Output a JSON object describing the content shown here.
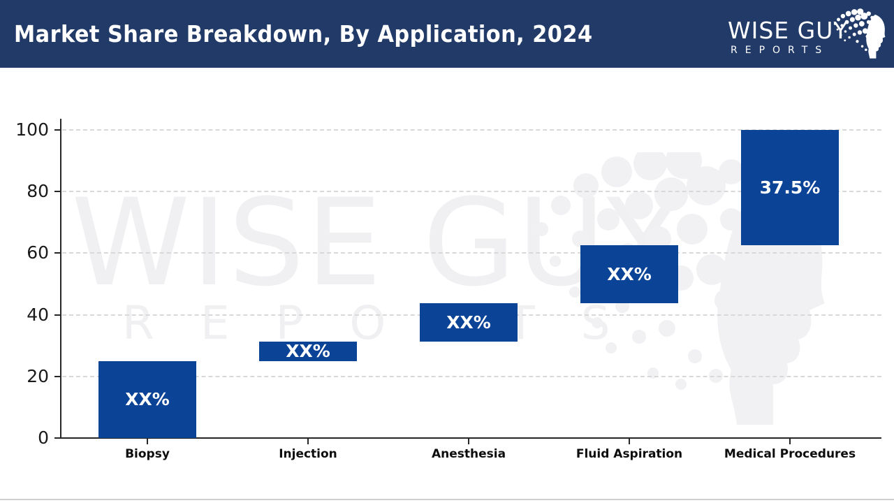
{
  "header": {
    "title": "Market Share Breakdown, By Application, 2024",
    "logo": {
      "wordmark": "WISE GUY",
      "subtext": "REPORTS"
    }
  },
  "watermark": {
    "line1": "WISE GUY",
    "line2": "REPORTS"
  },
  "colors": {
    "header_bg": "#213A68",
    "bar_blue": "#0B4397",
    "grid_gray": "#D8D8D8",
    "axis_dark": "#262626",
    "watermark_gray": "#F0F0F3"
  },
  "chart_data": {
    "type": "bar",
    "subtype": "waterfall",
    "title": "Market Share Breakdown, By Application, 2024",
    "categories": [
      "Biopsy",
      "Injection",
      "Anesthesia",
      "Fluid Aspiration",
      "Medical Procedures"
    ],
    "bars": [
      {
        "category": "Biopsy",
        "start": 0,
        "end": 25,
        "label": "XX%"
      },
      {
        "category": "Injection",
        "start": 25,
        "end": 31.25,
        "label": "XX%"
      },
      {
        "category": "Anesthesia",
        "start": 31.25,
        "end": 43.75,
        "label": "XX%"
      },
      {
        "category": "Fluid Aspiration",
        "start": 43.75,
        "end": 62.5,
        "label": "XX%"
      },
      {
        "category": "Medical Procedures",
        "start": 62.5,
        "end": 100,
        "label": "37.5%"
      }
    ],
    "xlabel": "",
    "ylabel": "",
    "ylim": [
      0,
      100
    ],
    "yticks": [
      0,
      20,
      40,
      60,
      80,
      100
    ],
    "grid": "horizontal-dashed",
    "legend": "none",
    "bar_color": "#0B4397",
    "value_label_color": "#FFFFFF"
  }
}
